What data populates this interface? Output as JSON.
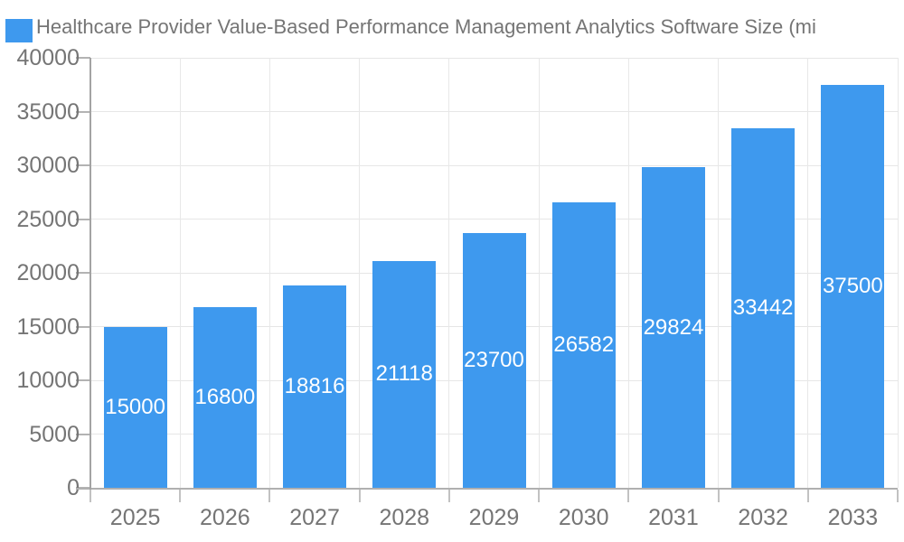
{
  "chart_data": {
    "type": "bar",
    "title": "Healthcare Provider Value-Based Performance Management Analytics Software Size (mi",
    "categories": [
      "2025",
      "2026",
      "2027",
      "2028",
      "2029",
      "2030",
      "2031",
      "2032",
      "2033"
    ],
    "values": [
      15000,
      16800,
      18816,
      21118,
      23700,
      26582,
      29824,
      33442,
      37500
    ],
    "bar_labels": [
      "15000",
      "16800",
      "18816",
      "21118",
      "23700",
      "26582",
      "29824",
      "33442",
      "37500"
    ],
    "xlabel": "",
    "ylabel": "",
    "ylim": [
      0,
      40000
    ],
    "yticks": [
      0,
      5000,
      10000,
      15000,
      20000,
      25000,
      30000,
      35000,
      40000
    ],
    "ytick_labels": [
      "0",
      "5000",
      "10000",
      "15000",
      "20000",
      "25000",
      "30000",
      "35000",
      "40000"
    ],
    "grid": true,
    "legend_position": "top-left",
    "colors": {
      "bar": "#3E99EE",
      "bar_label_text": "#FFFFFF",
      "axis_text": "#757575",
      "title_text": "#757575",
      "gridline": "#E6E6E6",
      "axis_line": "#B0B0B0"
    }
  }
}
